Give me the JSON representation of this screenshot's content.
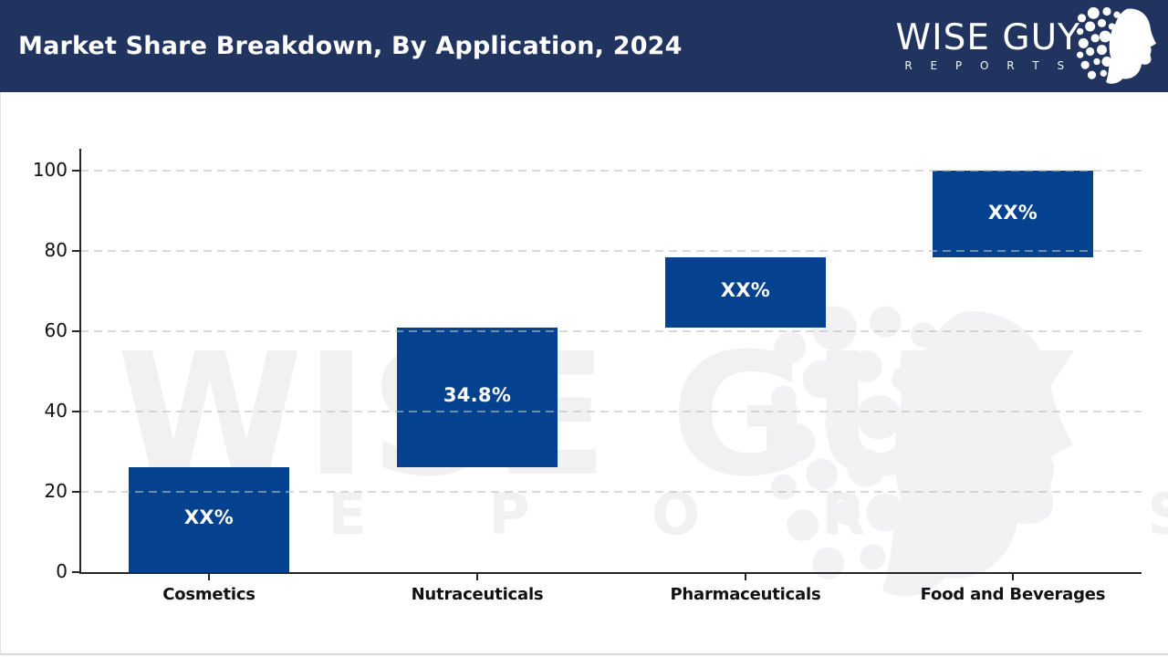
{
  "header": {
    "title": "Market Share Breakdown, By Application, 2024",
    "bg_color": "#21345f",
    "logo": {
      "line1": "WISE GUY",
      "line2": "R E P O R T S"
    }
  },
  "watermark": {
    "line1": "WISE GUY",
    "line2": "R E P O R T S"
  },
  "chart_data": {
    "type": "waterfall",
    "title": "Market Share Breakdown, By Application, 2024",
    "categories": [
      "Cosmetics",
      "Nutraceuticals",
      "Pharmaceuticals",
      "Food and Beverages"
    ],
    "segments": [
      {
        "category": "Cosmetics",
        "start": 0,
        "end": 26.2,
        "label": "XX%"
      },
      {
        "category": "Nutraceuticals",
        "start": 26.2,
        "end": 61.0,
        "label": "34.8%",
        "value": 34.8
      },
      {
        "category": "Pharmaceuticals",
        "start": 61.0,
        "end": 78.4,
        "label": "XX%"
      },
      {
        "category": "Food and Beverages",
        "start": 78.4,
        "end": 100,
        "label": "XX%"
      }
    ],
    "ylim": [
      0,
      100
    ],
    "yticks": [
      0,
      20,
      40,
      60,
      80,
      100
    ],
    "bar_color": "#04418f",
    "label_color": "#ffffff",
    "grid": "dashed-horizontal",
    "legend": "none"
  }
}
